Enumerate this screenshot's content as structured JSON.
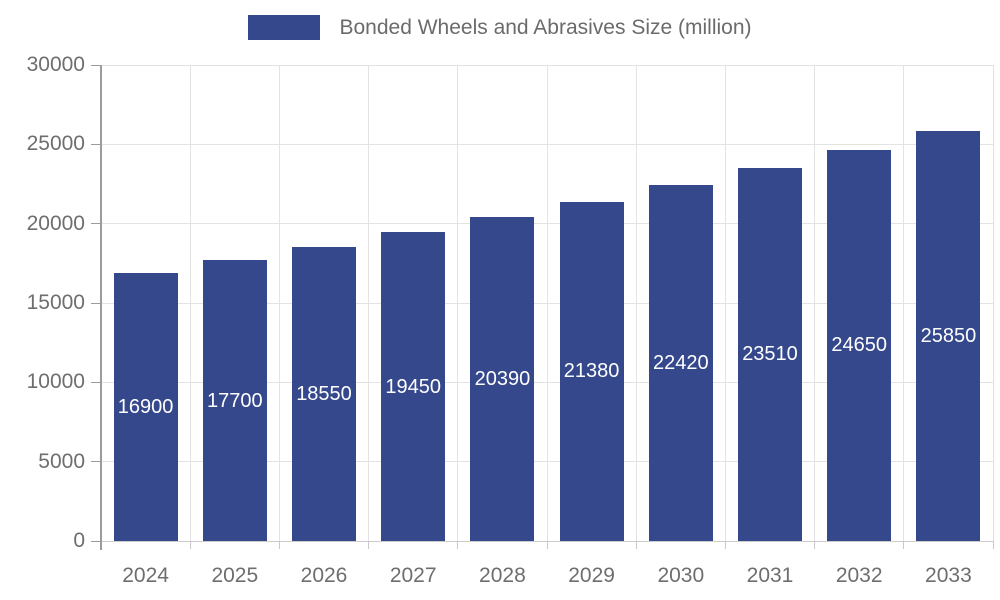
{
  "legend": {
    "series_label": "Bonded Wheels and Abrasives Size (million)"
  },
  "chart_data": {
    "type": "bar",
    "title": "",
    "categories": [
      "2024",
      "2025",
      "2026",
      "2027",
      "2028",
      "2029",
      "2030",
      "2031",
      "2032",
      "2033"
    ],
    "series": [
      {
        "name": "Bonded Wheels and Abrasives Size (million)",
        "values": [
          16900,
          17700,
          18550,
          19450,
          20390,
          21380,
          22420,
          23510,
          24650,
          25850
        ]
      }
    ],
    "xlabel": "",
    "ylabel": "",
    "ylim": [
      0,
      30000
    ],
    "yticks": [
      0,
      5000,
      10000,
      15000,
      20000,
      25000,
      30000
    ],
    "grid": true,
    "legend_position": "top-center",
    "bar_color": "#35488C",
    "value_label_color": "#ffffff",
    "value_label_position": "inside-center"
  },
  "style": {
    "background_color": "#ffffff",
    "grid_color": "#e3e3e3",
    "y_axis_line_color": "#9b9b9b",
    "x_axis_line_color": "#cccccc",
    "tick_color": "#c9c9c9",
    "y_tick_color": "#9b9b9b",
    "axis_label_color": "#6e6e6e",
    "legend_text_color": "#6b6b6b"
  }
}
